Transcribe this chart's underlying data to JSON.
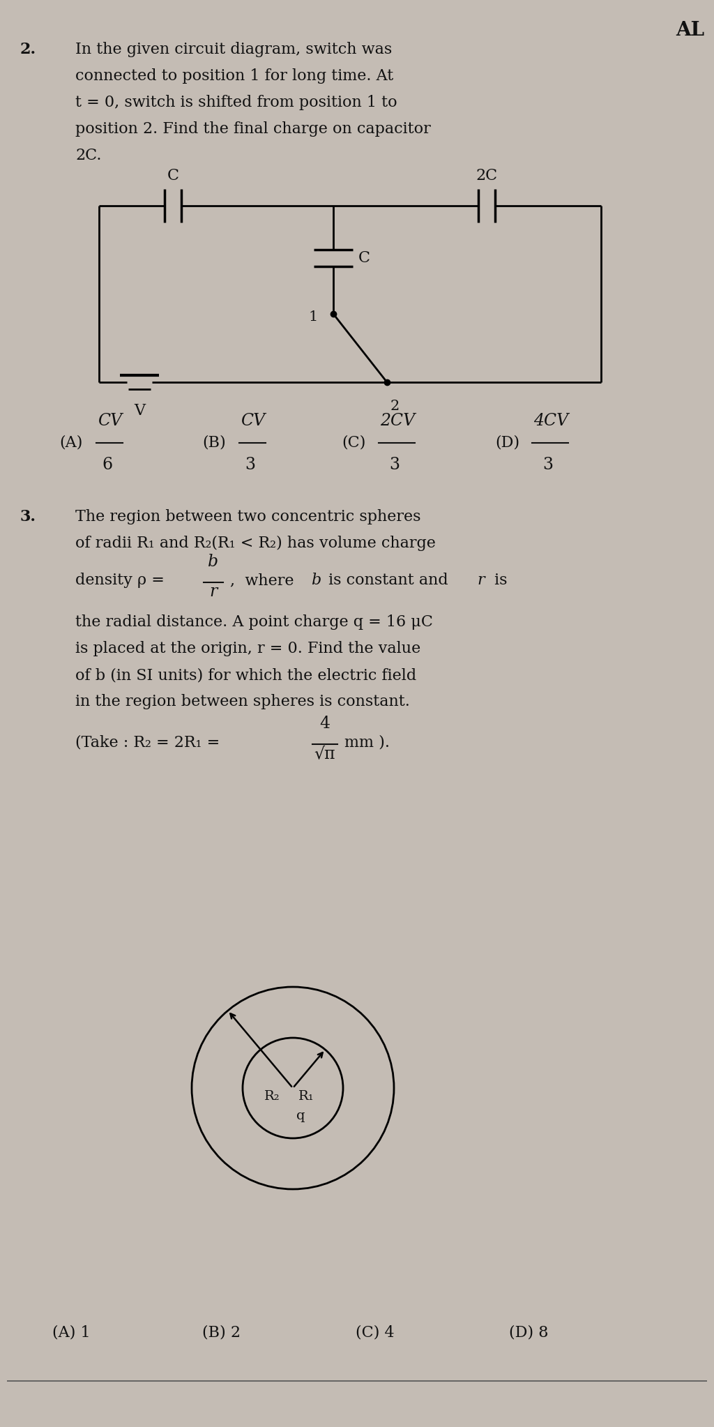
{
  "bg_color": "#c4bcb4",
  "text_color": "#111111",
  "font_size": 16,
  "fig_w": 10.24,
  "fig_h": 20.46,
  "dpi": 100,
  "q2_lines": [
    "In the given circuit diagram, switch was",
    "connected to position 1 for long time. At",
    "t = 0, switch is shifted from position 1 to",
    "position 2. Find the final charge on capacitor",
    "2C."
  ],
  "q3_lines_a": [
    "The region between two concentric spheres",
    "of radii R₁ and R₂(R₁ < R₂) has volume charge"
  ],
  "q3_lines_b": [
    "the radial distance. A point charge q = 16 μC",
    "is placed at the origin, r = 0. Find the value",
    "of b (in SI units) for which the electric field",
    "in the region between spheres is constant."
  ],
  "q3_options": [
    "(A) 1",
    "(B) 2",
    "(C) 4",
    "(D) 8"
  ]
}
